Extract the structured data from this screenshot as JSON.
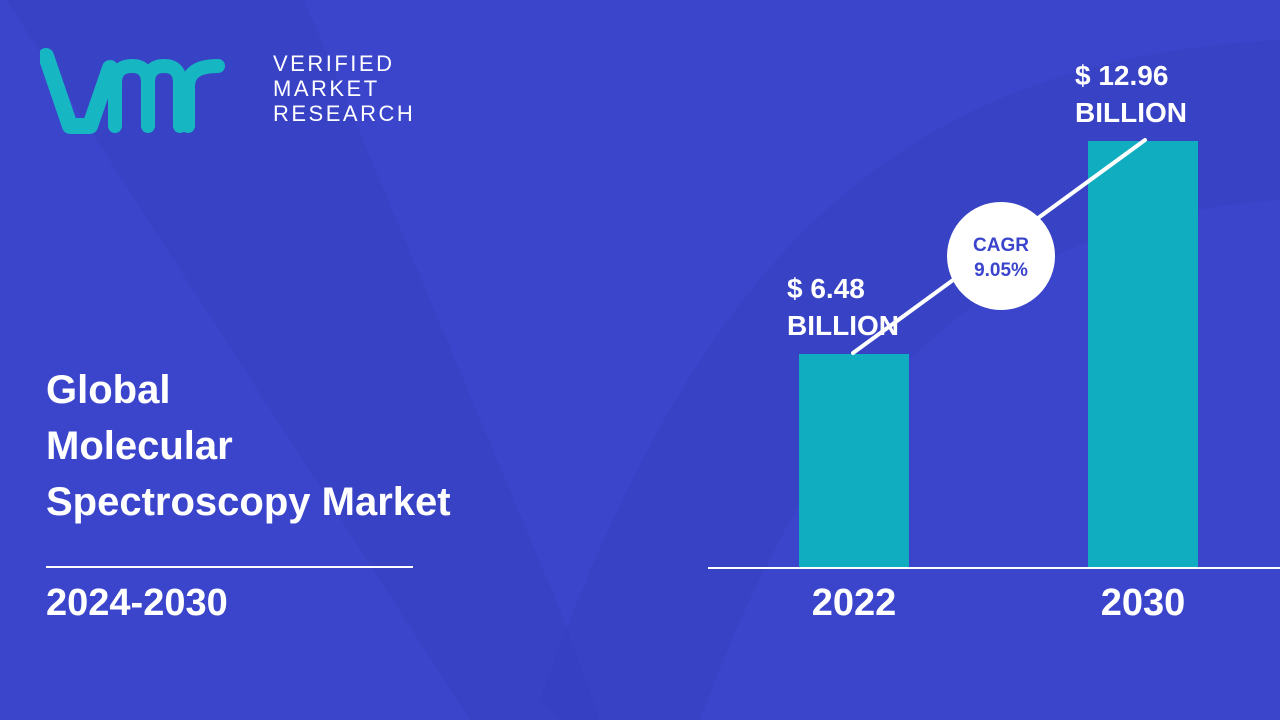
{
  "brand": {
    "logo_lines": [
      "VERIFIED",
      "MARKET",
      "RESEARCH"
    ],
    "accent_color": "#16b6c2"
  },
  "title_lines": [
    "Global",
    "Molecular",
    "Spectroscopy Market"
  ],
  "period": "2024-2030",
  "colors": {
    "background": "#3b45cc",
    "bar": "#10adc0",
    "text": "#ffffff",
    "cagr_text": "#3b45cc"
  },
  "chart_data": {
    "type": "bar",
    "categories": [
      "2022",
      "2030"
    ],
    "values": [
      6.48,
      12.96
    ],
    "value_labels": [
      [
        "$ 6.48",
        "BILLION"
      ],
      [
        "$ 12.96",
        "BILLION"
      ]
    ],
    "unit": "USD Billion",
    "annotation": {
      "lines": [
        "CAGR",
        "9.05%"
      ]
    }
  }
}
